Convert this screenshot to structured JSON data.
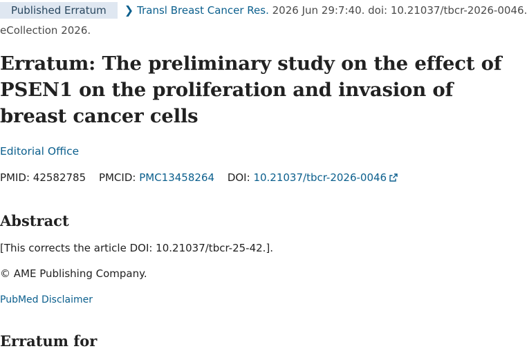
{
  "citation": {
    "badge": "Published Erratum",
    "journal": "Transl Breast Cancer Res.",
    "details": " 2026 Jun 29:7:40. doi: 10.21037/tbcr-2026-0046.",
    "ecollection": "eCollection 2026."
  },
  "article": {
    "title": "Erratum: The preliminary study on the effect of PSEN1 on the proliferation and invasion of breast cancer cells",
    "author": "Editorial Office"
  },
  "identifiers": {
    "pmid_label": "PMID:",
    "pmid": "42582785",
    "pmcid_label": "PMCID:",
    "pmcid": "PMC13458264",
    "doi_label": "DOI:",
    "doi": "10.21037/tbcr-2026-0046"
  },
  "abstract": {
    "heading": "Abstract",
    "text": "[This corrects the article DOI: 10.21037/tbcr-25-42.].",
    "copyright": "© AME Publishing Company.",
    "disclaimer": "PubMed Disclaimer"
  },
  "erratum_for": {
    "heading": "Erratum for"
  },
  "icons": {
    "chevron": "chevron-right-icon",
    "external_link": "external-link-icon"
  },
  "colors": {
    "link": "#0b5f8d",
    "badge_bg": "#dfe7f1",
    "text": "#212121"
  }
}
